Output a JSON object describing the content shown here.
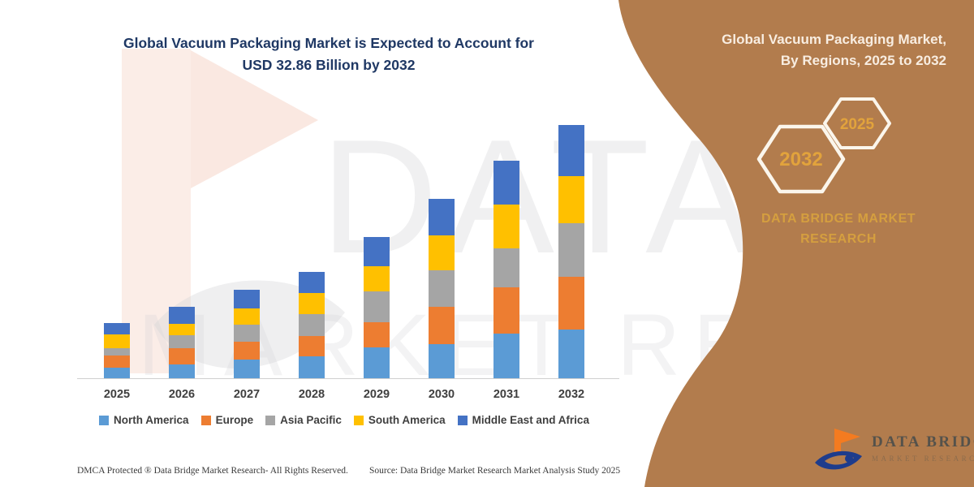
{
  "header": {
    "title_line1": "Global Vacuum Packaging Market is Expected to Account for",
    "title_line2": "USD 32.86 Billion by 2032"
  },
  "side_panel": {
    "title_line1": "Global Vacuum Packaging Market,",
    "title_line2": "By Regions, 2025 to 2032",
    "hexagon_large_label": "2032",
    "hexagon_small_label": "2025",
    "brand_line1": "DATA BRIDGE MARKET",
    "brand_line2": "RESEARCH",
    "colors": {
      "panel_brown": "#B27C4D",
      "hex_outline": "#FBF6EC",
      "hex_label_gold": "#E2A33C",
      "brand_gold": "#D59F3F"
    }
  },
  "watermark": {
    "line1": "DATA BRIDGE",
    "line2": "MARKET RESEARCH"
  },
  "chart_data": {
    "type": "bar",
    "stacked": true,
    "title": "Global Vacuum Packaging Market is Expected to Account for USD 32.86 Billion by 2032",
    "unit": "USD Billion",
    "categories": [
      "2025",
      "2026",
      "2027",
      "2028",
      "2029",
      "2030",
      "2031",
      "2032"
    ],
    "series": [
      {
        "name": "North America",
        "color": "#5B9BD5",
        "values": [
          1.4,
          1.8,
          2.4,
          2.8,
          4.0,
          4.4,
          5.8,
          6.3
        ]
      },
      {
        "name": "Europe",
        "color": "#ED7D31",
        "values": [
          1.6,
          2.1,
          2.3,
          2.7,
          3.3,
          4.9,
          6.0,
          6.9
        ]
      },
      {
        "name": "Asia Pacific",
        "color": "#A5A5A5",
        "values": [
          0.9,
          1.7,
          2.3,
          2.8,
          4.0,
          4.7,
          5.1,
          6.9
        ]
      },
      {
        "name": "South America",
        "color": "#FFC000",
        "values": [
          1.8,
          1.5,
          2.1,
          2.8,
          3.3,
          4.6,
          5.7,
          6.1
        ]
      },
      {
        "name": "Middle East and Africa",
        "color": "#4472C4",
        "values": [
          1.5,
          2.2,
          2.4,
          2.7,
          3.7,
          4.7,
          5.7,
          6.7
        ]
      }
    ],
    "totals": [
      7.2,
      9.3,
      11.5,
      13.8,
      18.3,
      23.3,
      28.3,
      32.9
    ],
    "ylim": [
      0,
      33
    ],
    "grid": false,
    "y_axis_visible": false,
    "legend_position": "bottom",
    "annotation_2032_total": "USD 32.86 Billion"
  },
  "logo": {
    "wordmark": "DATA BRIDGE",
    "subtext": "MARKET RESEARCH"
  },
  "footer": {
    "left": "DMCA Protected ® Data Bridge Market Research-  All Rights Reserved.",
    "right": "Source: Data Bridge Market Research Market Analysis Study 2025"
  }
}
